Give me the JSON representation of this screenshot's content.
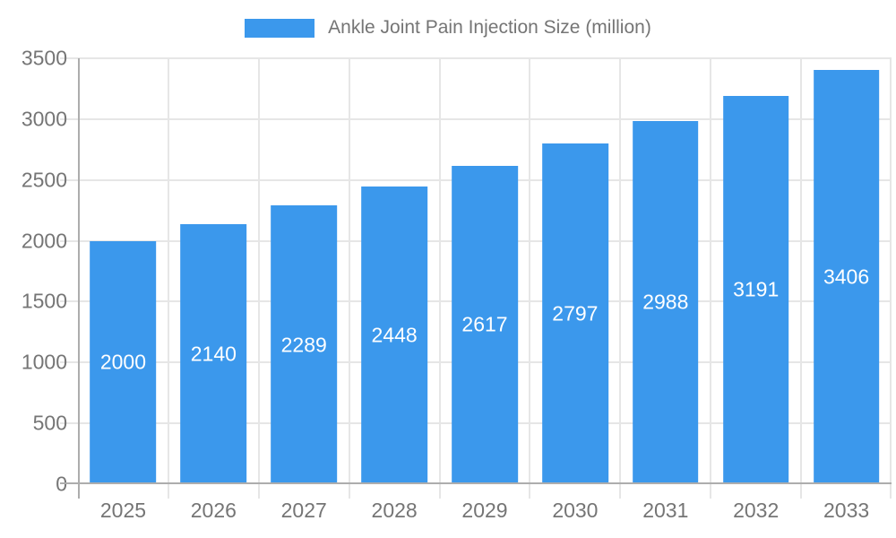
{
  "legend": {
    "label": "Ankle Joint Pain Injection Size (million)"
  },
  "chart_data": {
    "type": "bar",
    "title": "Ankle Joint Pain Injection Size (million)",
    "categories": [
      "2025",
      "2026",
      "2027",
      "2028",
      "2029",
      "2030",
      "2031",
      "2032",
      "2033"
    ],
    "values": [
      2000,
      2140,
      2289,
      2448,
      2617,
      2797,
      2988,
      3191,
      3406
    ],
    "xlabel": "",
    "ylabel": "",
    "ylim": [
      0,
      3500
    ],
    "yticks": [
      0,
      500,
      1000,
      1500,
      2000,
      2500,
      3000,
      3500
    ],
    "grid": true,
    "legend_position": "top-center",
    "data_labels_inside_bars": true
  },
  "colors": {
    "bar": "#3b98ec",
    "grid": "#e6e6e6",
    "axis": "#adadad",
    "tick_label": "#757575",
    "bar_label": "#ffffff",
    "background": "#ffffff"
  }
}
